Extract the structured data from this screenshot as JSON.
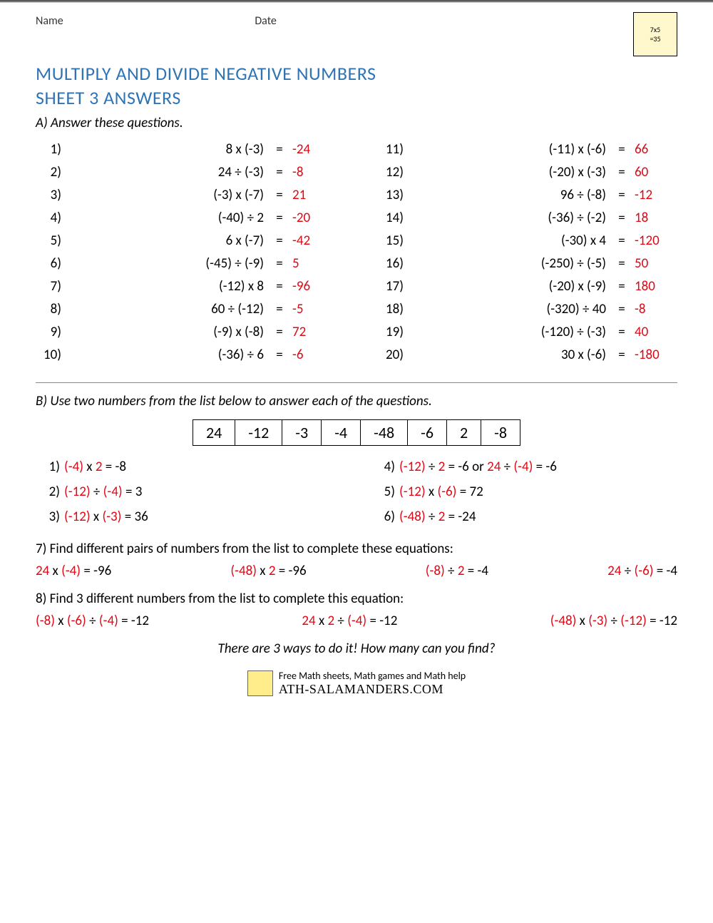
{
  "header": {
    "name_label": "Name",
    "date_label": "Date",
    "title": "MULTIPLY AND DIVIDE NEGATIVE NUMBERS",
    "subtitle": "SHEET 3 ANSWERS"
  },
  "sectionA": {
    "instruction": "A) Answer these questions.",
    "left": [
      {
        "n": "1)",
        "expr": "8 x (-3)",
        "ans": "-24"
      },
      {
        "n": "2)",
        "expr": "24 ÷ (-3)",
        "ans": "-8"
      },
      {
        "n": "3)",
        "expr": "(-3) x (-7)",
        "ans": "21"
      },
      {
        "n": "4)",
        "expr": "(-40) ÷ 2",
        "ans": "-20"
      },
      {
        "n": "5)",
        "expr": "6 x (-7)",
        "ans": "-42"
      },
      {
        "n": "6)",
        "expr": "(-45) ÷ (-9)",
        "ans": "5"
      },
      {
        "n": "7)",
        "expr": "(-12) x 8",
        "ans": "-96"
      },
      {
        "n": "8)",
        "expr": "60 ÷ (-12)",
        "ans": "-5"
      },
      {
        "n": "9)",
        "expr": "(-9) x (-8)",
        "ans": "72"
      },
      {
        "n": "10)",
        "expr": "(-36) ÷ 6",
        "ans": "-6"
      }
    ],
    "right": [
      {
        "n": "11)",
        "expr": "(-11) x (-6)",
        "ans": "66"
      },
      {
        "n": "12)",
        "expr": "(-20) x (-3)",
        "ans": "60"
      },
      {
        "n": "13)",
        "expr": "96 ÷ (-8)",
        "ans": "-12"
      },
      {
        "n": "14)",
        "expr": "(-36) ÷ (-2)",
        "ans": "18"
      },
      {
        "n": "15)",
        "expr": "(-30) x 4",
        "ans": "-120"
      },
      {
        "n": "16)",
        "expr": "(-250) ÷ (-5)",
        "ans": "50"
      },
      {
        "n": "17)",
        "expr": "(-20) x (-9)",
        "ans": "180"
      },
      {
        "n": "18)",
        "expr": "(-320) ÷ 40",
        "ans": "-8"
      },
      {
        "n": "19)",
        "expr": "(-120) ÷ (-3)",
        "ans": "40"
      },
      {
        "n": "20)",
        "expr": "30 x (-6)",
        "ans": "-180"
      }
    ]
  },
  "sectionB": {
    "instruction": "B) Use two numbers from the list below to answer each of the questions.",
    "numbers": [
      "24",
      "-12",
      "-3",
      "-4",
      "-48",
      "-6",
      "2",
      "-8"
    ],
    "left": [
      {
        "n": "1)",
        "parts": [
          [
            "(-4)",
            true
          ],
          [
            " x ",
            false
          ],
          [
            "2",
            true
          ],
          [
            " = -8",
            false
          ]
        ]
      },
      {
        "n": "2)",
        "parts": [
          [
            "(-12)",
            true
          ],
          [
            " ÷ ",
            false
          ],
          [
            "(-4)",
            true
          ],
          [
            " = 3",
            false
          ]
        ]
      },
      {
        "n": "3)",
        "parts": [
          [
            "(-12)",
            true
          ],
          [
            " x ",
            false
          ],
          [
            "(-3)",
            true
          ],
          [
            " = 36",
            false
          ]
        ]
      }
    ],
    "right": [
      {
        "n": "4)",
        "parts": [
          [
            "(-12)",
            true
          ],
          [
            " ÷ ",
            false
          ],
          [
            "2",
            true
          ],
          [
            " = -6 or ",
            false
          ],
          [
            "24",
            true
          ],
          [
            " ÷ ",
            false
          ],
          [
            "(-4)",
            true
          ],
          [
            " = -6",
            false
          ]
        ]
      },
      {
        "n": "5)",
        "parts": [
          [
            "(-12)",
            true
          ],
          [
            " x ",
            false
          ],
          [
            "(-6)",
            true
          ],
          [
            " = 72",
            false
          ]
        ]
      },
      {
        "n": "6)",
        "parts": [
          [
            "(-48)",
            true
          ],
          [
            " ÷ ",
            false
          ],
          [
            "2",
            true
          ],
          [
            " = -24",
            false
          ]
        ]
      }
    ],
    "q7_text": "7) Find different pairs of numbers from the list to complete these equations:",
    "q7_eqs": [
      [
        [
          "24",
          true
        ],
        [
          " x  ",
          false
        ],
        [
          "(-4)",
          true
        ],
        [
          " = -96",
          false
        ]
      ],
      [
        [
          "(-48)",
          true
        ],
        [
          " x ",
          false
        ],
        [
          "2",
          true
        ],
        [
          " = -96",
          false
        ]
      ],
      [
        [
          "(-8)",
          true
        ],
        [
          " ÷  ",
          false
        ],
        [
          "2",
          true
        ],
        [
          " = -4",
          false
        ]
      ],
      [
        [
          "24",
          true
        ],
        [
          " ÷ ",
          false
        ],
        [
          "(-6)",
          true
        ],
        [
          " = -4",
          false
        ]
      ]
    ],
    "q8_text": "8) Find 3 different numbers from the list to complete this equation:",
    "q8_eqs": [
      [
        [
          "(-8)",
          true
        ],
        [
          " x ",
          false
        ],
        [
          "(-6)",
          true
        ],
        [
          " ÷ ",
          false
        ],
        [
          "(-4)",
          true
        ],
        [
          " = -12",
          false
        ]
      ],
      [
        [
          "24",
          true
        ],
        [
          " x ",
          false
        ],
        [
          "2",
          true
        ],
        [
          " ÷ ",
          false
        ],
        [
          "(-4)",
          true
        ],
        [
          " = -12",
          false
        ]
      ],
      [
        [
          "(-48)",
          true
        ],
        [
          " x ",
          false
        ],
        [
          "(-3)",
          true
        ],
        [
          " ÷ ",
          false
        ],
        [
          "(-12)",
          true
        ],
        [
          " = -12",
          false
        ]
      ]
    ],
    "footer_note": "There are 3 ways to do it! How many can you find?"
  },
  "footer": {
    "line1": "Free Math sheets, Math games and Math help",
    "line2": "ATH-SALAMANDERS.COM"
  },
  "colors": {
    "title": "#2e74b5",
    "answer_red": "#e30613"
  }
}
